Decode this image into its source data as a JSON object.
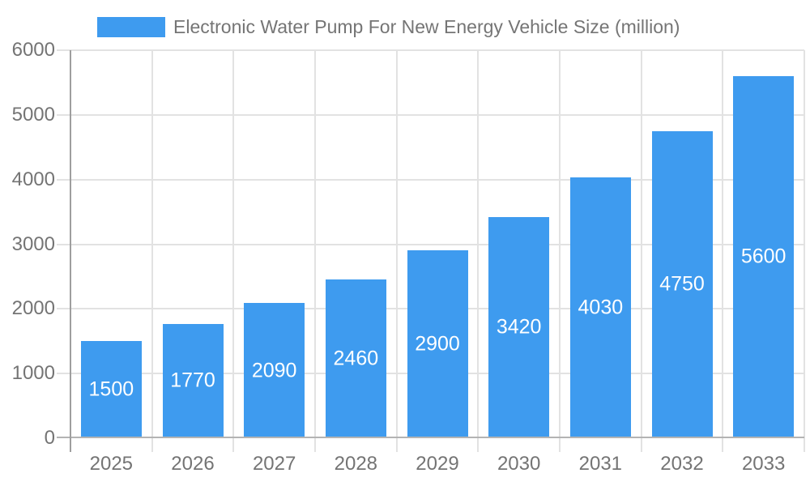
{
  "legend": {
    "label": "Electronic Water Pump For New Energy Vehicle Size (million)",
    "swatch_color": "#3e9bef"
  },
  "chart_data": {
    "type": "bar",
    "title": "Electronic Water Pump For New Energy Vehicle Size (million)",
    "categories": [
      "2025",
      "2026",
      "2027",
      "2028",
      "2029",
      "2030",
      "2031",
      "2032",
      "2033"
    ],
    "values": [
      1500,
      1770,
      2090,
      2460,
      2900,
      3420,
      4030,
      4750,
      5600
    ],
    "xlabel": "",
    "ylabel": "",
    "ylim": [
      0,
      6000
    ],
    "yticks": [
      0,
      1000,
      2000,
      3000,
      4000,
      5000,
      6000
    ],
    "grid": true,
    "legend_position": "top",
    "bar_color": "#3e9bef",
    "bar_label_color": "#ffffff",
    "axis_text_color": "#747474",
    "grid_color": "#e2e2e2"
  }
}
